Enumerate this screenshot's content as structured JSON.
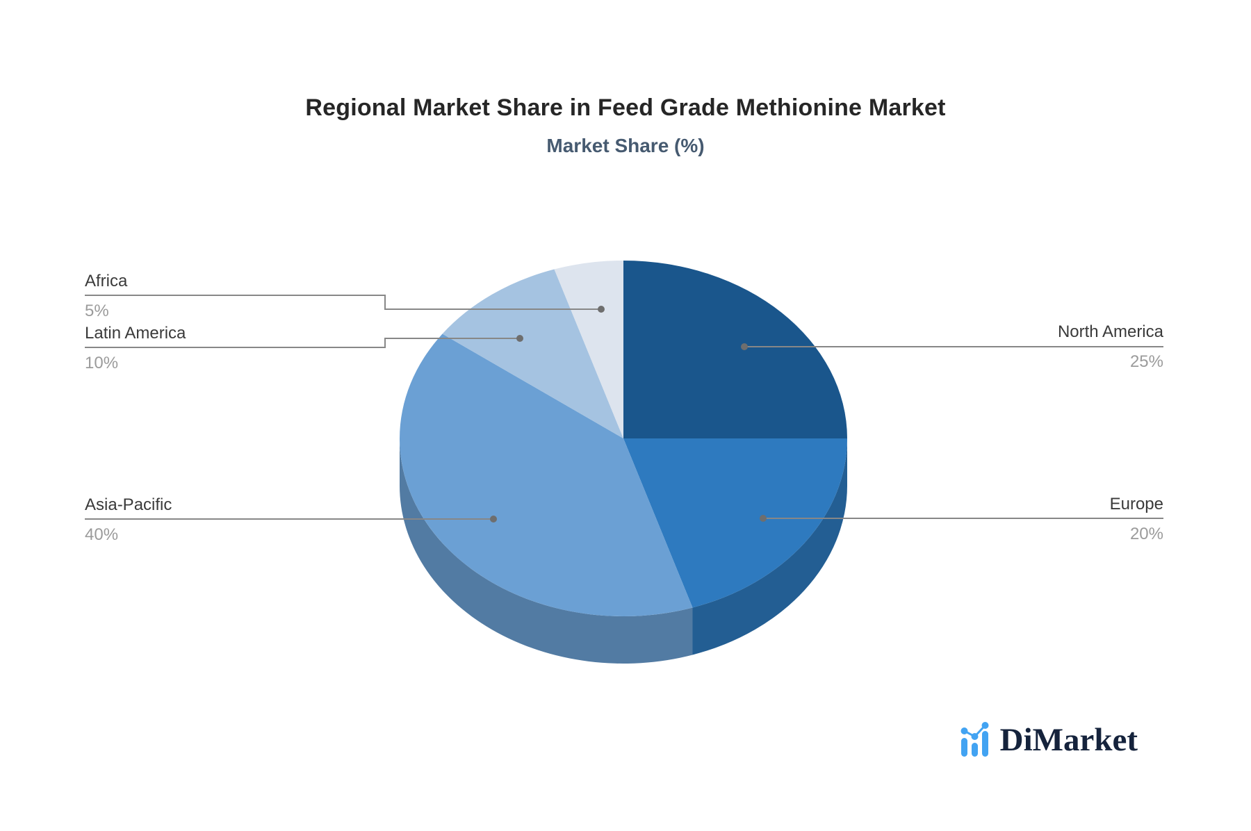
{
  "header": {
    "title": "Regional Market Share in Feed Grade Methionine Market",
    "subtitle": "Market Share (%)"
  },
  "chart_data": {
    "type": "pie",
    "title": "Regional Market Share in Feed Grade Methionine Market",
    "subtitle": "Market Share (%)",
    "style": "3d-ellipse-pie",
    "order": "clockwise-from-top",
    "legend_position": "callout-labels",
    "leader_line_color": "#878787",
    "leader_dot_color": "#6e6e6e",
    "label_color": "#3a3a3a",
    "percent_color": "#9b9b9b",
    "segments": [
      {
        "label": "North America",
        "value": 25,
        "display": "25%",
        "color": "#1a568c"
      },
      {
        "label": "Europe",
        "value": 20,
        "display": "20%",
        "color": "#2e7abf"
      },
      {
        "label": "Asia-Pacific",
        "value": 40,
        "display": "40%",
        "color": "#6ba0d4"
      },
      {
        "label": "Latin America",
        "value": 10,
        "display": "10%",
        "color": "#a5c3e1"
      },
      {
        "label": "Africa",
        "value": 5,
        "display": "5%",
        "color": "#dde4ee"
      }
    ]
  },
  "branding": {
    "logo_text": "DiMarket",
    "logo_icon": "bar-chart-trendline-icon",
    "logo_icon_color": "#42a3f2",
    "logo_text_color": "#15233c"
  }
}
